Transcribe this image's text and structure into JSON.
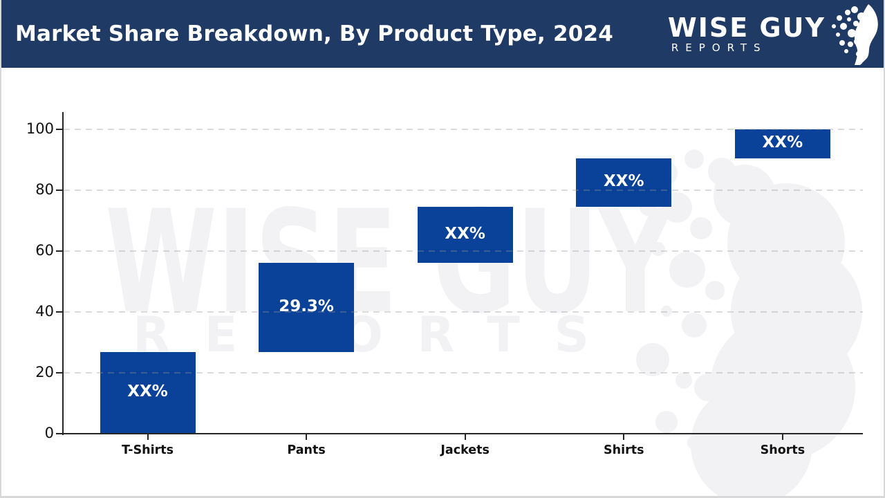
{
  "header": {
    "bg": "#203a66",
    "title": "Market Share Breakdown, By Product Type, 2024",
    "logo_line1": "WISE GUY",
    "logo_line2": "REPORTS"
  },
  "watermark": {
    "line1": "WISE GUY",
    "line2": "REPORTS"
  },
  "chart_data": {
    "type": "bar",
    "subtype": "waterfall",
    "title": "Market Share Breakdown, By Product Type, 2024",
    "categories": [
      "T-Shirts",
      "Pants",
      "Jackets",
      "Shirts",
      "Shorts"
    ],
    "bars": [
      {
        "category": "T-Shirts",
        "start": 0,
        "end": 26.8,
        "value_label": "XX%"
      },
      {
        "category": "Pants",
        "start": 26.8,
        "end": 56.1,
        "value_label": "29.3%"
      },
      {
        "category": "Jackets",
        "start": 56.1,
        "end": 74.5,
        "value_label": "XX%"
      },
      {
        "category": "Shirts",
        "start": 74.5,
        "end": 90.5,
        "value_label": "XX%"
      },
      {
        "category": "Shorts",
        "start": 90.5,
        "end": 100,
        "value_label": "XX%"
      }
    ],
    "yticks": [
      0,
      20,
      40,
      60,
      80,
      100
    ],
    "ylim": [
      0,
      105
    ],
    "xlabel": "",
    "ylabel": "",
    "grid": true,
    "legend": false,
    "bar_color": "#0b4299",
    "bar_label_color": "#ffffff",
    "axis_color": "#262626",
    "tick_label_color": "#111111",
    "grid_color": "#d9d9d9"
  }
}
